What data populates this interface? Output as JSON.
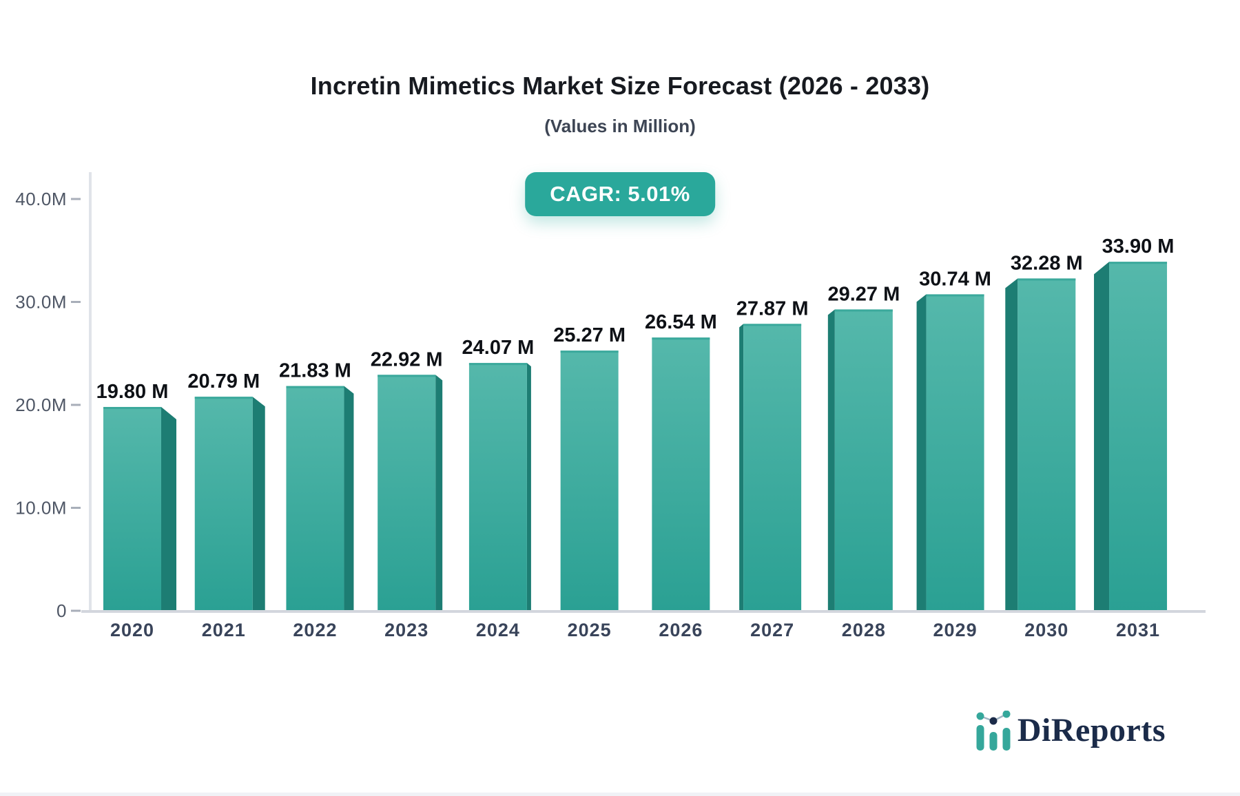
{
  "header": {
    "title": "Incretin Mimetics Market Size Forecast (2026 - 2033)",
    "subtitle": "(Values in Million)",
    "cagr_label": "CAGR: 5.01%"
  },
  "chart_data": {
    "type": "bar",
    "title": "Incretin Mimetics Market Size Forecast (2026 - 2033)",
    "subtitle": "(Values in Million)",
    "unit": "Million",
    "cagr_pct": 5.01,
    "categories": [
      "2020",
      "2021",
      "2022",
      "2023",
      "2024",
      "2025",
      "2026",
      "2027",
      "2028",
      "2029",
      "2030",
      "2031"
    ],
    "values": [
      19.8,
      20.79,
      21.83,
      22.92,
      24.07,
      25.27,
      26.54,
      27.87,
      29.27,
      30.74,
      32.28,
      33.9
    ],
    "labels": [
      "19.80 M",
      "20.79 M",
      "21.83 M",
      "22.92 M",
      "24.07 M",
      "25.27 M",
      "26.54 M",
      "27.87 M",
      "29.27 M",
      "30.74 M",
      "32.28 M",
      "33.90 M"
    ],
    "xlabel": "",
    "ylabel": "",
    "ylim": [
      0,
      40
    ],
    "yticks": [
      {
        "label": "40.0M",
        "value": 40
      },
      {
        "label": "30.0M",
        "value": 30
      },
      {
        "label": "20.0M",
        "value": 20
      },
      {
        "label": "10.0M",
        "value": 10
      },
      {
        "label": "0",
        "value": 0
      }
    ],
    "grid": false,
    "legend": false,
    "style": "3d-column-central-perspective"
  },
  "colors": {
    "bar_face_top": "#55b8ab",
    "bar_face_bottom": "#2aa093",
    "bar_top_edge": "#3ba99c",
    "bar_side": "#1d7d73",
    "badge_bg": "#2aa89b",
    "badge_text": "#ffffff",
    "title_text": "#171a20",
    "subtitle_text": "#3d4554",
    "ytick_text": "#4e5665",
    "xtick_text": "#39445a",
    "value_label_text": "#0e1116",
    "axis_line": "#e0e3e9",
    "baseline": "#d3d6dd",
    "tick_dash": "#a8aeb9",
    "brand_navy": "#1b2b49",
    "brand_teal": "#35a79b"
  },
  "footer": {
    "brand": "DiReports"
  }
}
